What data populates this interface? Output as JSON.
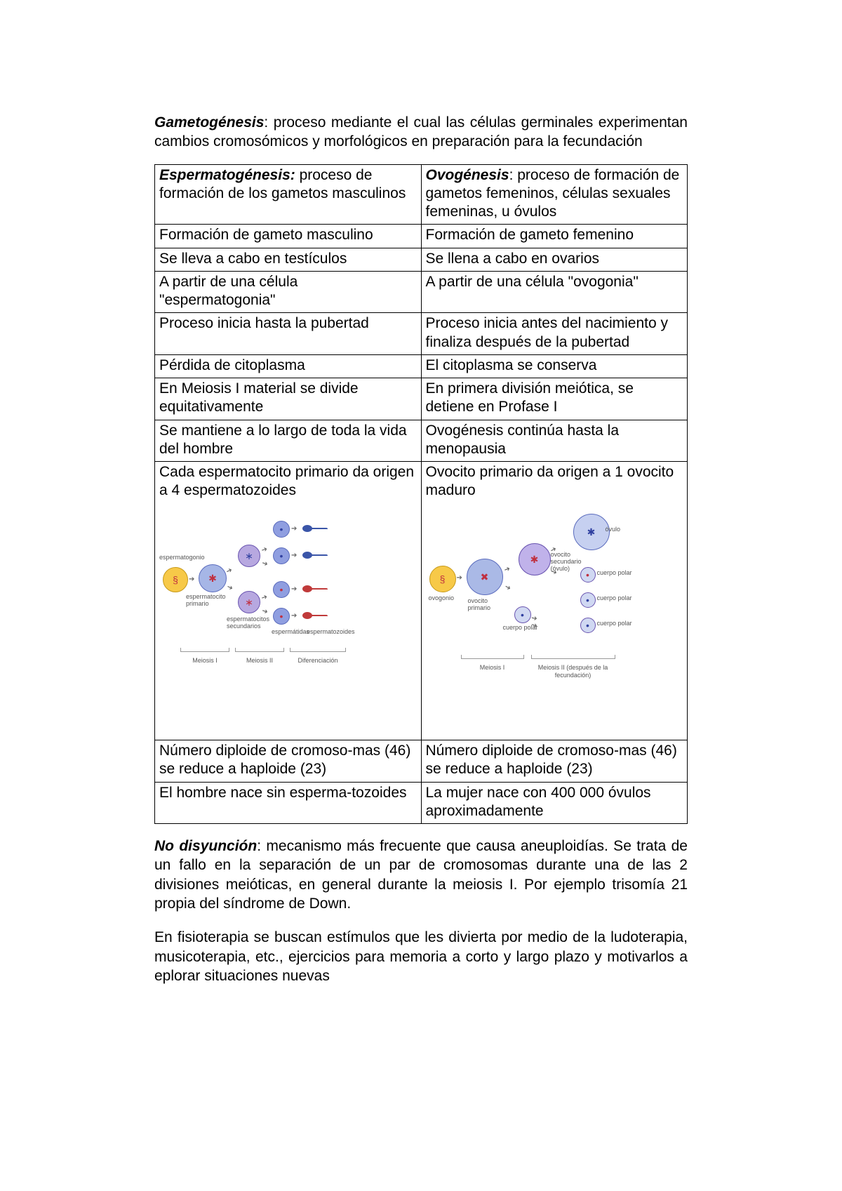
{
  "intro": {
    "term": "Gametogénesis",
    "text": ": proceso mediante el cual las células germinales experimentan cambios cromosómicos y morfológicos en preparación para la fecundación"
  },
  "table": {
    "header_left_term": "Espermatogénesis:",
    "header_left_text": " proceso de formación de los gametos masculinos",
    "header_right_term": "Ovogénesis",
    "header_right_text": ": proceso de formación de gametos femeninos, células sexuales femeninas, u óvulos",
    "rows": [
      {
        "left": "Formación de gameto masculino",
        "right": "Formación de gameto femenino"
      },
      {
        "left": "Se lleva a cabo en testículos",
        "right": "Se llena a cabo en ovarios"
      },
      {
        "left": "A partir de una célula \"espermatogonia\"",
        "right": "A partir de una célula \"ovogonia\""
      },
      {
        "left": "Proceso inicia hasta la pubertad",
        "right": "Proceso inicia antes del nacimiento y finaliza después de la pubertad"
      },
      {
        "left": "Pérdida de citoplasma",
        "right": "El citoplasma se conserva"
      },
      {
        "left": " En Meiosis I material se divide equitativamente",
        "right": "En primera división meiótica, se detiene en Profase I"
      },
      {
        "left": "Se mantiene a lo largo de toda la vida del hombre",
        "right": "Ovogénesis continúa hasta la menopausia"
      }
    ],
    "diagram_row": {
      "left_heading": "Cada espermatocito primario da origen a  4 espermatozoides",
      "right_heading": "Ovocito primario da origen a 1 ovocito maduro"
    },
    "rows_after": [
      {
        "left": "Número diploide de cromoso-mas (46) se reduce a haploide (23)",
        "right": "Número diploide de cromoso-mas (46) se reduce a haploide (23)"
      },
      {
        "left": "El hombre nace sin esperma-tozoides",
        "right": "La mujer nace con 400 000 óvulos aproximadamente"
      }
    ]
  },
  "diagrams": {
    "sperm": {
      "colors": {
        "gonia_fill": "#f7c948",
        "gonia_border": "#c79a1a",
        "primary_fill": "#a6b6e6",
        "primary_border": "#5a6bbd",
        "secondary_fill": "#b7a8e0",
        "secondary_border": "#6a55b0",
        "spermatid_fill": "#8f9ee0",
        "sperm_red": "#c03a3a",
        "sperm_blue": "#3a55a8",
        "label": "#6a6a6a",
        "arrow": "#8a8a8a",
        "chromatin_red": "#c03040",
        "chromatin_blue": "#3040a0"
      },
      "labels": {
        "gonia": "espermatogonio",
        "primary": "espermatocito primario",
        "secondary": "espermatocitos secundarios",
        "spermatids": "espermátidas",
        "spermatozoa": "espermatozoides",
        "stage1": "Meiosis I",
        "stage2": "Meiosis II",
        "stage3": "Diferenciación"
      }
    },
    "ovo": {
      "colors": {
        "gonia_fill": "#f7c948",
        "gonia_border": "#c79a1a",
        "primary_fill": "#aab9e6",
        "primary_border": "#5a6bbd",
        "secondary_fill": "#c0b2ea",
        "secondary_border": "#6a55b0",
        "ovum_fill": "#c6d0f0",
        "ovum_border": "#5a6bbd",
        "polar_fill": "#d0d8f2",
        "label": "#6a6a6a",
        "arrow": "#8a8a8a",
        "chromatin_red": "#c03040",
        "chromatin_blue": "#3040a0"
      },
      "labels": {
        "gonia": "ovogonio",
        "primary": "ovocito primario",
        "secondary": "ovocito secundario (óvulo)",
        "ovum": "óvulo",
        "polar": "cuerpo polar",
        "stage1": "Meiosis I",
        "stage2": "Meiosis II (después de la fecundación)"
      }
    }
  },
  "outro": {
    "term": "No disyunción",
    "p1": ": mecanismo más frecuente que causa aneuploidías. Se trata de un fallo en la separación de un par de cromosomas durante una de las 2 divisiones meióticas, en general durante la meiosis I. Por ejemplo trisomía 21 propia del síndrome de Down.",
    "p2": "En fisioterapia se buscan estímulos que les divierta por medio de la ludoterapia, musicoterapia, etc., ejercicios para memoria a corto y largo plazo y motivarlos a eplorar situaciones nuevas"
  }
}
